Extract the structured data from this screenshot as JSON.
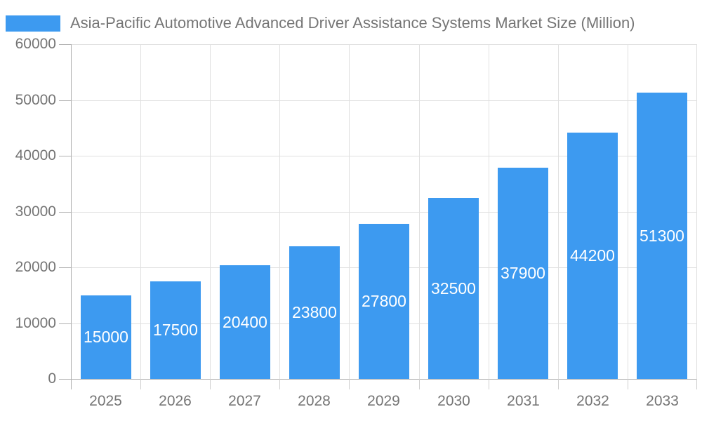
{
  "chart_data": {
    "type": "bar",
    "title": "Asia-Pacific Automotive Advanced Driver Assistance Systems Market Size (Million)",
    "categories": [
      "2025",
      "2026",
      "2027",
      "2028",
      "2029",
      "2030",
      "2031",
      "2032",
      "2033"
    ],
    "values": [
      15000,
      17500,
      20400,
      23800,
      27800,
      32500,
      37900,
      44200,
      51300
    ],
    "value_labels": [
      "15000",
      "17500",
      "20400",
      "23800",
      "27800",
      "32500",
      "37900",
      "44200",
      "51300"
    ],
    "xlabel": "",
    "ylabel": "",
    "ylim": [
      0,
      60000
    ],
    "y_ticks": [
      0,
      10000,
      20000,
      30000,
      40000,
      50000,
      60000
    ],
    "y_tick_labels": [
      "0",
      "10000",
      "20000",
      "30000",
      "40000",
      "50000",
      "60000"
    ],
    "grid": "both",
    "grid_alignment": "category-boundaries",
    "legend_position": "top-left",
    "value_label_position": "inside-bar-center",
    "colors": {
      "bar": "#3D9AF0",
      "text": "#757575",
      "grid": "#E0E0E0",
      "axis": "#B0B0B0",
      "tick": "#CFCFCF",
      "value_text": "#FFFFFF",
      "background": "#FFFFFF"
    }
  }
}
